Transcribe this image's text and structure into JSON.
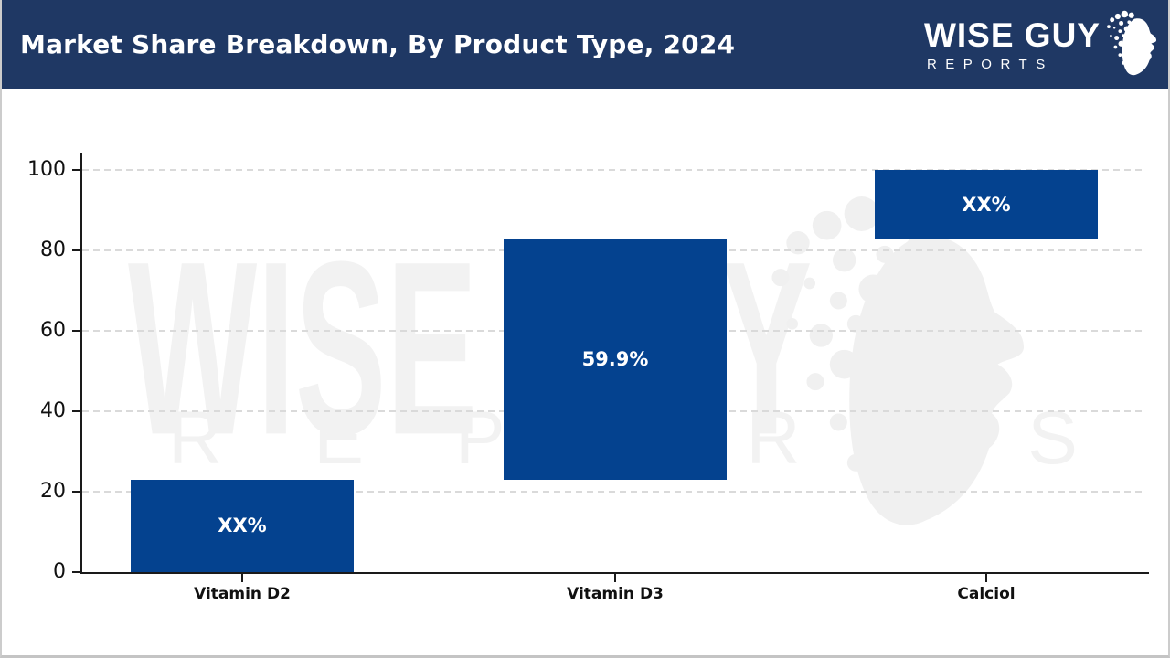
{
  "header": {
    "title": "Market Share Breakdown, By Product Type, 2024",
    "background_color": "#1f3864",
    "logo": {
      "line1": "WISE GUY",
      "line2": "REPORTS"
    }
  },
  "watermark": {
    "line1": "WISE GUY",
    "line2": "REPORTS"
  },
  "chart_data": {
    "type": "bar",
    "subtype": "stacked-waterfall",
    "title": "Market Share Breakdown, By Product Type, 2024",
    "categories": [
      "Vitamin D2",
      "Vitamin D3",
      "Calciol"
    ],
    "bars": [
      {
        "category": "Vitamin D2",
        "base": 0,
        "top": 23,
        "label": "XX%"
      },
      {
        "category": "Vitamin D3",
        "base": 23,
        "top": 82.9,
        "label": "59.9%"
      },
      {
        "category": "Calciol",
        "base": 82.9,
        "top": 100,
        "label": "XX%"
      }
    ],
    "yticks": [
      0,
      20,
      40,
      60,
      80,
      100
    ],
    "ylim": [
      0,
      104
    ],
    "xlabel": "",
    "ylabel": "",
    "grid": "horizontal-dashed",
    "legend": "none",
    "bar_color": "#04428F",
    "bar_label_color": "#ffffff",
    "gridline_color": "#dadada",
    "axis_color": "#1a1a1a"
  }
}
